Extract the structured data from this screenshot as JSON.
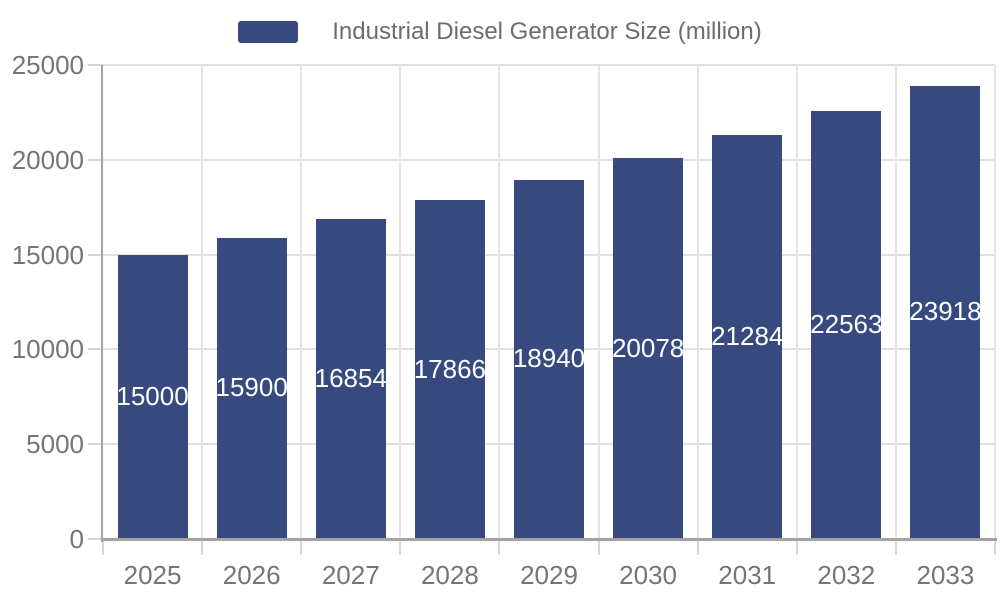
{
  "legend": {
    "label": "Industrial Diesel Generator Size (million)"
  },
  "chart_data": {
    "type": "bar",
    "title": "Industrial Diesel Generator Size (million)",
    "categories": [
      "2025",
      "2026",
      "2027",
      "2028",
      "2029",
      "2030",
      "2031",
      "2032",
      "2033"
    ],
    "values": [
      15000,
      15900,
      16854,
      17866,
      18940,
      20078,
      21284,
      22563,
      23918
    ],
    "xlabel": "",
    "ylabel": "",
    "ylim": [
      0,
      25000
    ],
    "yticks": [
      0,
      5000,
      10000,
      15000,
      20000,
      25000
    ],
    "bar_labels_visible": true,
    "bar_label_position": "inside-center",
    "grid": true,
    "legend_position": "top-center"
  },
  "colors": {
    "bar": "#364a80",
    "bar_label": "#ffffff",
    "grid_line": "#e0e0e0",
    "vertical_grid_line": "#e5e5e5",
    "tick_line": "#d6d6d6",
    "axis_line": "#a3a3a3",
    "axis_text": "#757575",
    "legend_text": "#6d6d6d",
    "background": "#ffffff"
  }
}
